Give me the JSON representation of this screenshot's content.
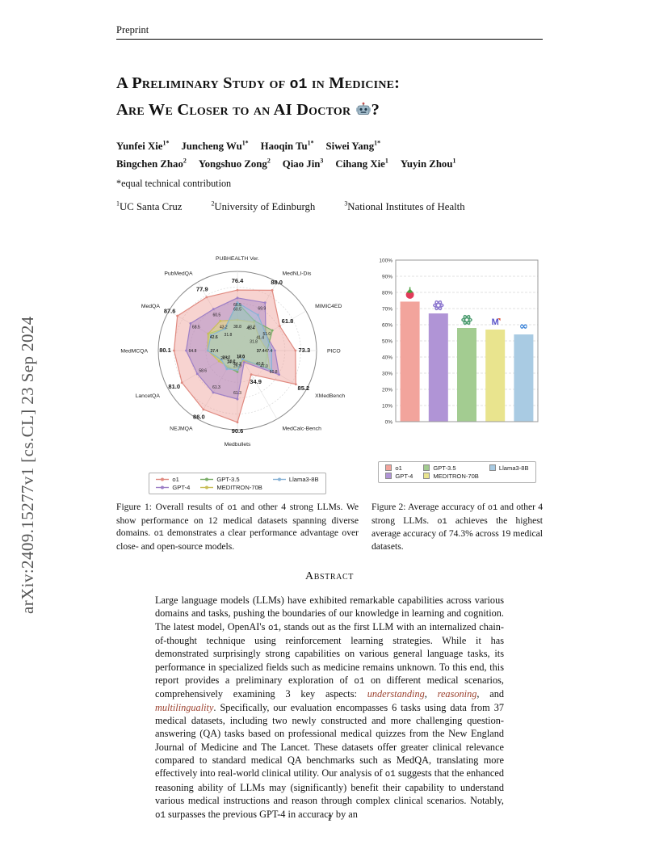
{
  "arxiv": {
    "label": "arXiv:2409.15277v1  [cs.CL]  23 Sep 2024"
  },
  "header": {
    "label": "Preprint"
  },
  "title": {
    "line1_pre": "A Preliminary Study of ",
    "o1": "o1",
    "line1_post": " in Medicine:",
    "line2": "Are We Closer to an AI Doctor ",
    "line2_end": "?"
  },
  "authors": {
    "line1": [
      {
        "name": "Yunfei Xie",
        "sup": "1*"
      },
      {
        "name": "Juncheng Wu",
        "sup": "1*"
      },
      {
        "name": "Haoqin Tu",
        "sup": "1*"
      },
      {
        "name": "Siwei Yang",
        "sup": "1*"
      }
    ],
    "line2": [
      {
        "name": "Bingchen Zhao",
        "sup": "2"
      },
      {
        "name": "Yongshuo Zong",
        "sup": "2"
      },
      {
        "name": "Qiao Jin",
        "sup": "3"
      },
      {
        "name": "Cihang Xie",
        "sup": "1"
      },
      {
        "name": "Yuyin Zhou",
        "sup": "1"
      }
    ],
    "equal_note": "*equal technical contribution",
    "affiliations": [
      {
        "sup": "1",
        "name": "UC Santa Cruz"
      },
      {
        "sup": "2",
        "name": "University of Edinburgh"
      },
      {
        "sup": "3",
        "name": "National Institutes of Health"
      }
    ]
  },
  "figures": {
    "fig1_caption": [
      {
        "t": "Figure 1: Overall results of ",
        "s": "n"
      },
      {
        "t": "o1",
        "s": "m"
      },
      {
        "t": " and other 4 strong LLMs. We show performance on 12 medical datasets spanning diverse domains. ",
        "s": "n"
      },
      {
        "t": "o1",
        "s": "m"
      },
      {
        "t": " demonstrates a clear performance advantage over close- and open-source models.",
        "s": "n"
      }
    ],
    "fig2_caption": [
      {
        "t": "Figure 2: Average accuracy of ",
        "s": "n"
      },
      {
        "t": "o1",
        "s": "m"
      },
      {
        "t": " and other 4 strong LLMs. ",
        "s": "n"
      },
      {
        "t": "o1",
        "s": "m"
      },
      {
        "t": " achieves the highest average accuracy of 74.3% across 19 medical datasets.",
        "s": "n"
      }
    ]
  },
  "abstract": {
    "heading": "Abstract",
    "segments": [
      {
        "t": "Large language models (LLMs) have exhibited remarkable capabilities across various domains and tasks, pushing the boundaries of our knowledge in learning and cognition. The latest model, OpenAI's ",
        "s": "n"
      },
      {
        "t": "o1",
        "s": "m"
      },
      {
        "t": ", stands out as the first LLM with an internalized chain-of-thought technique using reinforcement learning strategies. While it has demonstrated surprisingly strong capabilities on various general language tasks, its performance in specialized fields such as medicine remains unknown. To this end, this report provides a preliminary exploration of ",
        "s": "n"
      },
      {
        "t": "o1",
        "s": "m"
      },
      {
        "t": " on different medical scenarios, comprehensively examining 3 key aspects: ",
        "s": "n"
      },
      {
        "t": "understanding",
        "s": "i"
      },
      {
        "t": ", ",
        "s": "n"
      },
      {
        "t": "reasoning",
        "s": "i"
      },
      {
        "t": ", and ",
        "s": "n"
      },
      {
        "t": "multilinguality",
        "s": "i"
      },
      {
        "t": ". Specifically, our evaluation encompasses 6 tasks using data from 37 medical datasets, including two newly constructed and more challenging question-answering (QA) tasks based on professional medical quizzes from the New England Journal of Medicine and The Lancet. These datasets offer greater clinical relevance compared to standard medical QA benchmarks such as MedQA, translating more effectively into real-world clinical utility. Our analysis of ",
        "s": "n"
      },
      {
        "t": "o1",
        "s": "m"
      },
      {
        "t": " suggests that the enhanced reasoning ability of LLMs may (significantly) benefit their capability to understand various medical instructions and reason through complex clinical scenarios. Notably, ",
        "s": "n"
      },
      {
        "t": "o1",
        "s": "m"
      },
      {
        "t": " surpasses the previous GPT-4 in accuracy by an",
        "s": "n"
      }
    ]
  },
  "page_number": "1",
  "chart_data": [
    {
      "type": "radar",
      "axes": [
        "PUBHEALTH Ver.",
        "MedNLI-Dis",
        "MIMIC4ED",
        "PICO",
        "XMedBench",
        "MedCalc-Bench",
        "Medbullets",
        "NEJMQA",
        "LancetQA",
        "MedMCQA",
        "MedQA",
        "PubMedQA"
      ],
      "rmax": 100,
      "series": [
        {
          "name": "o1",
          "color": "#e08a80",
          "fill": "rgba(238,158,150,0.45)",
          "show_labels": true,
          "values": [
            76.4,
            88.0,
            61.8,
            73.3,
            85.2,
            34.9,
            90.6,
            86.0,
            81.0,
            80.1,
            87.6,
            77.9
          ]
        },
        {
          "name": "GPT-4",
          "color": "#9d7fc6",
          "fill": "rgba(160,128,200,0.45)",
          "show_labels": true,
          "values": [
            66.5,
            69.9,
            41.4,
            47.4,
            60.8,
            17.0,
            61.3,
            61.3,
            58.6,
            64.8,
            68.5,
            60.5
          ]
        },
        {
          "name": "GPT-3.5",
          "color": "#79ad66",
          "fill": "rgba(148,195,128,0.5)",
          "show_labels": true,
          "values": [
            60.5,
            43.2,
            51.0,
            37.4,
            40.8,
            12.6,
            26.9,
            24.5,
            24.3,
            37.4,
            42.6,
            31.8
          ]
        },
        {
          "name": "MEDITRON-70B",
          "color": "#c9be58",
          "fill": "rgba(228,222,122,0.55)",
          "show_labels": true,
          "values": [
            38.8,
            41.4,
            31.8,
            37.4,
            47.0,
            14.0,
            24.3,
            23.2,
            26.9,
            37.4,
            42.6,
            43.2
          ]
        },
        {
          "name": "Llama3-8B",
          "color": "#88b3d6",
          "fill": "rgba(160,200,226,0.45)",
          "show_labels": false,
          "values": [
            60.5,
            52.0,
            41.4,
            43.2,
            50.0,
            12.6,
            24.5,
            26.9,
            23.2,
            37.4,
            38.8,
            31.8
          ]
        }
      ],
      "legend_order": [
        "o1",
        "GPT-3.5",
        "Llama3-8B",
        "GPT-4",
        "MEDITRON-70B"
      ]
    },
    {
      "type": "bar",
      "categories": [
        "o1",
        "GPT-4",
        "GPT-3.5",
        "MEDITRON-70B",
        "Llama3-8B"
      ],
      "values": [
        74.3,
        67.0,
        58.0,
        57.0,
        54.0
      ],
      "colors": [
        "#f2a49c",
        "#b094d6",
        "#a3cc91",
        "#e9e48e",
        "#a9cbe3"
      ],
      "icons": [
        "strawberry-icon",
        "openai-gpt4-icon",
        "openai-gpt35-icon",
        "meditron-icon",
        "meta-icon"
      ],
      "ylabel_ticks": [
        "0%",
        "10%",
        "20%",
        "30%",
        "40%",
        "50%",
        "60%",
        "70%",
        "80%",
        "90%",
        "100%"
      ],
      "ylim": [
        0,
        100
      ],
      "legend_order": [
        "o1",
        "GPT-3.5",
        "Llama3-8B",
        "GPT-4",
        "MEDITRON-70B"
      ]
    }
  ]
}
